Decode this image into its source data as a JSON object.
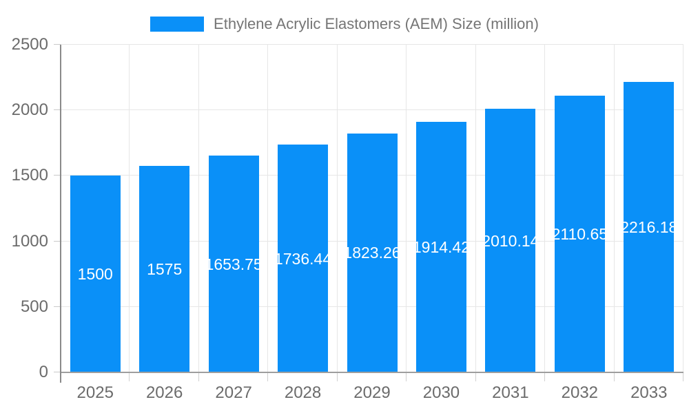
{
  "legend": {
    "label": "Ethylene Acrylic Elastomers (AEM) Size (million)"
  },
  "chart_data": {
    "type": "bar",
    "title": "Ethylene Acrylic Elastomers (AEM) Size (million)",
    "categories": [
      "2025",
      "2026",
      "2027",
      "2028",
      "2029",
      "2030",
      "2031",
      "2032",
      "2033"
    ],
    "values": [
      1500,
      1575,
      1653.75,
      1736.44,
      1823.26,
      1914.42,
      2010.14,
      2110.65,
      2216.18
    ],
    "bar_labels": [
      "1500",
      "1575",
      "1653.75",
      "1736.44",
      "1823.26",
      "1914.42",
      "2010.14",
      "2110.65",
      "2216.18"
    ],
    "xlabel": "",
    "ylabel": "",
    "ylim": [
      0,
      2500
    ],
    "yticks": [
      0,
      500,
      1000,
      1500,
      2000,
      2500
    ],
    "grid": true,
    "legend_position": "top",
    "bar_color": "#0a90f8",
    "bar_label_color": "#ffffff"
  }
}
